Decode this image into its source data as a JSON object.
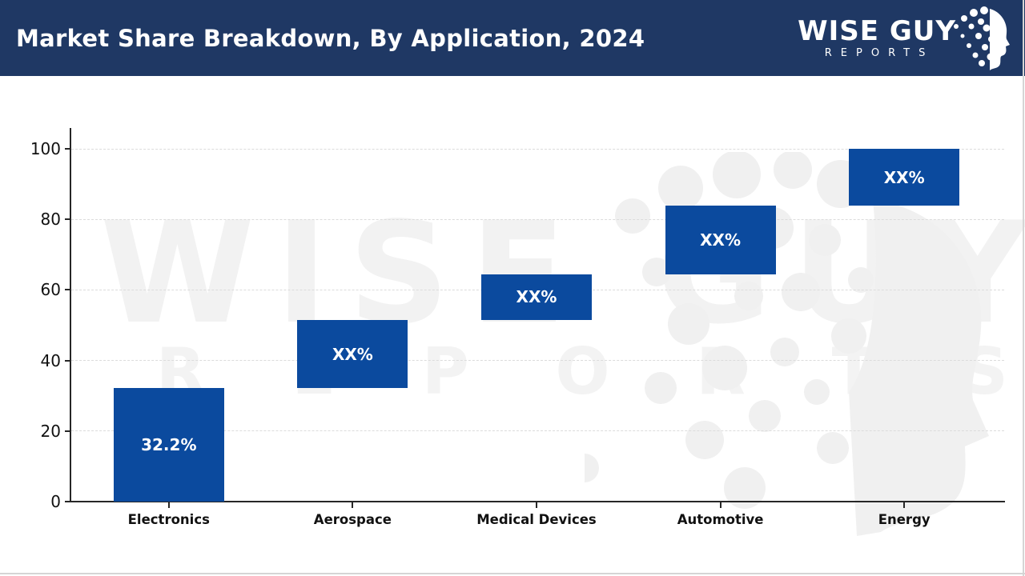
{
  "header": {
    "title": "Market Share Breakdown, By Application, 2024",
    "bg_color": "#1f3864",
    "logo": {
      "line1": "WISE GUY",
      "line2": "REPORTS"
    }
  },
  "watermark": {
    "line1": "WISE GUY",
    "line2": "R E P O R T S"
  },
  "colors": {
    "bar": "#0b4a9e",
    "bar_label": "#ffffff",
    "header_bg": "#1f3864",
    "grid": "#dcdcdc",
    "axis": "#262626",
    "watermark": "#f2f2f2"
  },
  "chart_data": {
    "type": "bar",
    "subtype": "waterfall",
    "title": "Market Share Breakdown, By Application, 2024",
    "categories": [
      "Electronics",
      "Aerospace",
      "Medical Devices",
      "Automotive",
      "Energy"
    ],
    "segments": [
      {
        "category": "Electronics",
        "start": 0,
        "end": 32.2,
        "label": "32.2%"
      },
      {
        "category": "Aerospace",
        "start": 32.2,
        "end": 51.4,
        "label": "XX%"
      },
      {
        "category": "Medical Devices",
        "start": 51.4,
        "end": 64.5,
        "label": "XX%"
      },
      {
        "category": "Automotive",
        "start": 64.5,
        "end": 83.9,
        "label": "XX%"
      },
      {
        "category": "Energy",
        "start": 83.9,
        "end": 100,
        "label": "XX%"
      }
    ],
    "ylim": [
      0,
      100
    ],
    "yticks": [
      0,
      20,
      40,
      60,
      80,
      100
    ],
    "xlabel": "",
    "ylabel": "",
    "grid": "horizontal-dashed",
    "legend": "none"
  }
}
